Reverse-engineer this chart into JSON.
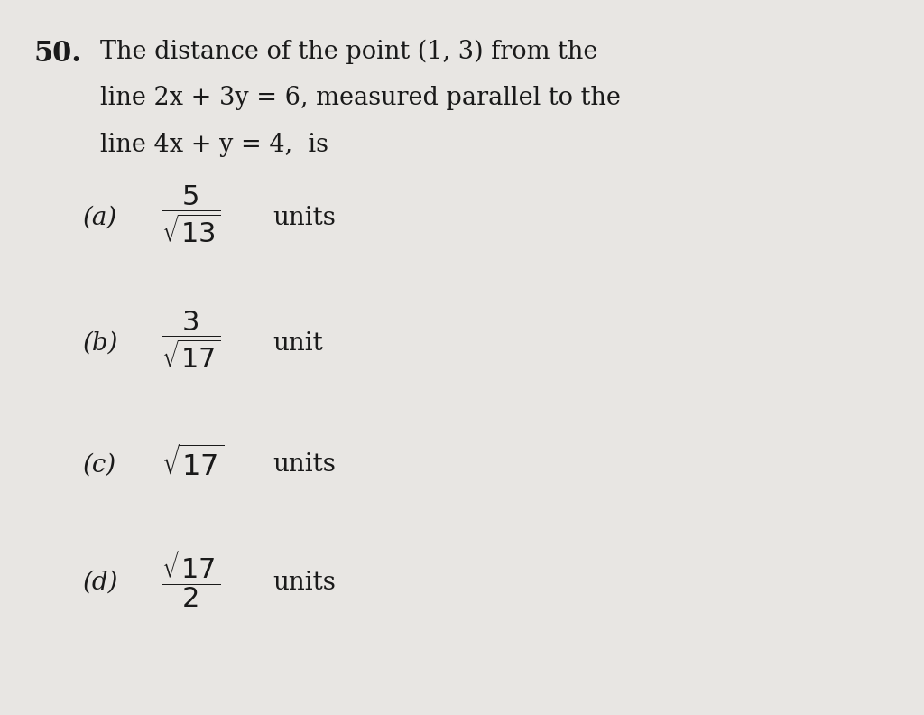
{
  "background_color": "#e8e6e3",
  "text_color": "#1a1a1a",
  "question_number": "50.",
  "question_text_line1": "The distance of the point (1, 3) from the",
  "question_text_line2": "line 2x + 3y = 6, measured parallel to the",
  "question_text_line3": "line 4x + y = 4,  is",
  "option_a_label": "(a)",
  "option_a_math": "$\\dfrac{5}{\\sqrt{13}}$",
  "option_a_suffix": "units",
  "option_b_label": "(b)",
  "option_b_math": "$\\dfrac{3}{\\sqrt{17}}$",
  "option_b_suffix": "unit",
  "option_c_label": "(c)",
  "option_c_math": "$\\sqrt{17}$",
  "option_c_suffix": "units",
  "option_d_label": "(d)",
  "option_d_math": "$\\dfrac{\\sqrt{17}}{2}$",
  "option_d_suffix": "units",
  "fontsize_question": 19.5,
  "fontsize_options_label": 20,
  "fontsize_options_math": 22,
  "fontsize_options_suffix": 20,
  "fontsize_number": 22
}
